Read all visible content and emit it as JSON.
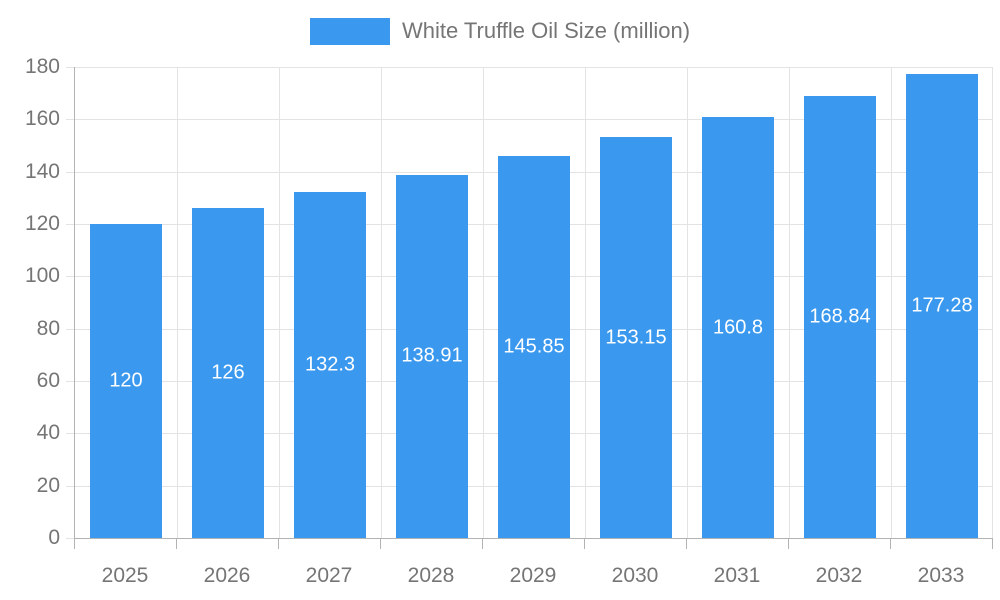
{
  "legend": {
    "label": "White Truffle Oil Size (million)"
  },
  "colors": {
    "bar": "#3a99ee",
    "bar_value_text": "#ffffff",
    "axis_text": "#757575",
    "gridline": "#e3e3e3",
    "axis_line": "#b3b3b3",
    "background": "#ffffff"
  },
  "chart_data": {
    "type": "bar",
    "title": "",
    "xlabel": "",
    "ylabel": "",
    "categories": [
      "2025",
      "2026",
      "2027",
      "2028",
      "2029",
      "2030",
      "2031",
      "2032",
      "2033"
    ],
    "series": [
      {
        "name": "White Truffle Oil Size (million)",
        "values": [
          120,
          126,
          132.3,
          138.91,
          145.85,
          153.15,
          160.8,
          168.84,
          177.28
        ],
        "labels": [
          "120",
          "126",
          "132.3",
          "138.91",
          "145.85",
          "153.15",
          "160.8",
          "168.84",
          "177.28"
        ],
        "color": "#3a99ee"
      }
    ],
    "ylim": [
      0,
      180
    ],
    "yticks": [
      0,
      20,
      40,
      60,
      80,
      100,
      120,
      140,
      160,
      180
    ],
    "grid": true,
    "grid_vertical": true,
    "legend_position": "top-center",
    "value_labels": "inside-center-white"
  }
}
